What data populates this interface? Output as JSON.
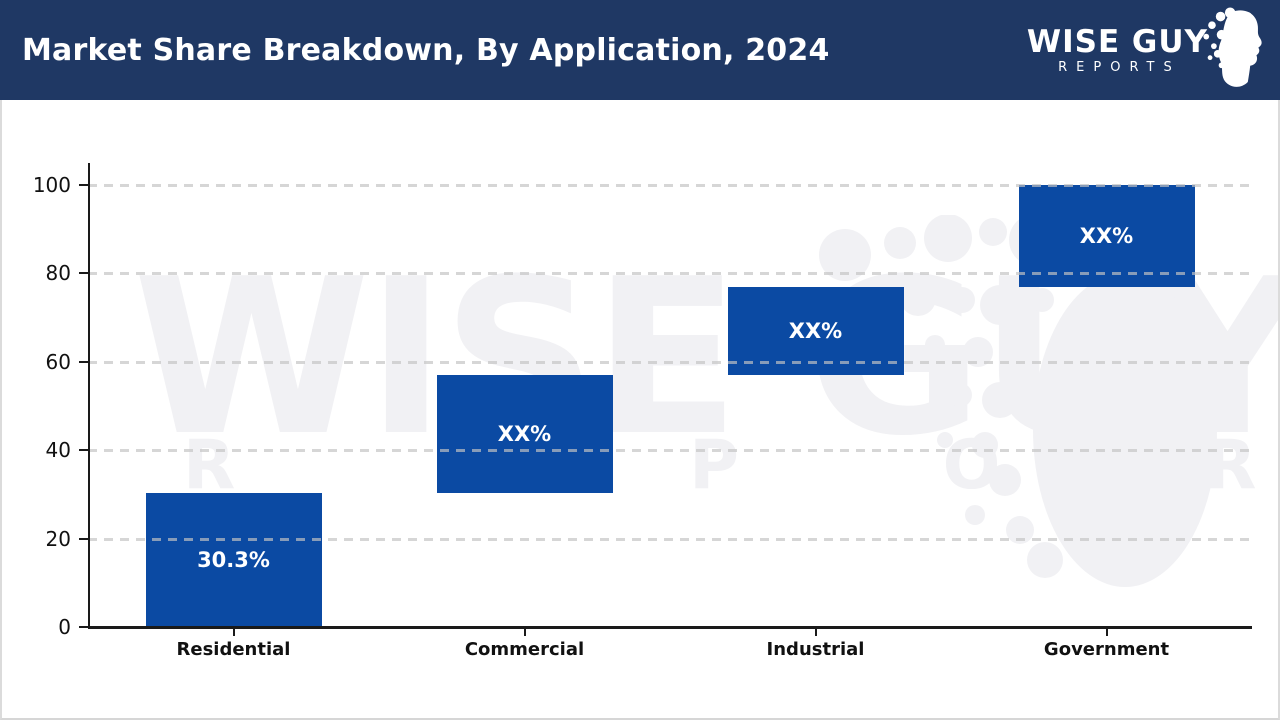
{
  "header": {
    "title": "Market Share Breakdown, By Application, 2024",
    "logo_line1": "WISE GUY",
    "logo_line2": "REPORTS"
  },
  "watermark": {
    "line1": "WISE GUY",
    "line2": "R E P O R T S"
  },
  "colors": {
    "header_bg": "#1F3864",
    "bar_blue": "#0B4AA3",
    "grid_gray": "#C3C3C3",
    "axis_black": "#1A1A1A",
    "watermark_gray": "#F1F1F4",
    "label_white": "#FFFFFF"
  },
  "chart_data": {
    "type": "waterfall",
    "title": "Market Share Breakdown, By Application, 2024",
    "categories": [
      "Residential",
      "Commercial",
      "Industrial",
      "Government"
    ],
    "segments": [
      {
        "category": "Residential",
        "start": 0,
        "end": 30.3,
        "label": "30.3%"
      },
      {
        "category": "Commercial",
        "start": 30.3,
        "end": 57,
        "label": "XX%"
      },
      {
        "category": "Industrial",
        "start": 57,
        "end": 77,
        "label": "XX%"
      },
      {
        "category": "Government",
        "start": 77,
        "end": 100,
        "label": "XX%"
      }
    ],
    "xlabel": "",
    "ylabel": "",
    "yticks": [
      0,
      20,
      40,
      60,
      80,
      100
    ],
    "ylim": [
      0,
      100
    ],
    "bar_color": "#0B4AA3",
    "grid": true,
    "gridline_style": "dashed",
    "legend_position": "none"
  }
}
